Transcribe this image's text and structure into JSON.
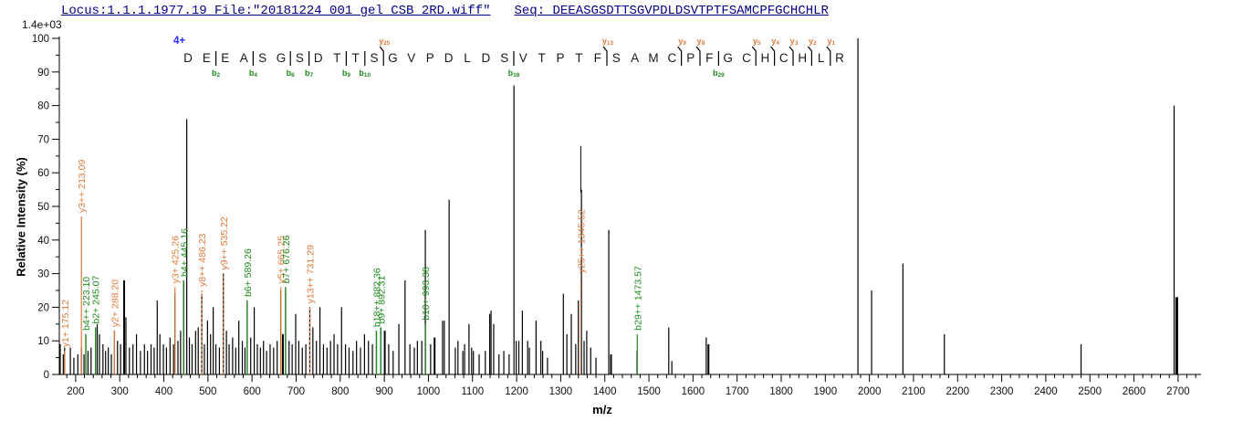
{
  "header": {
    "locus_file": "Locus:1.1.1.1977.19 File:\"20181224_001_gel_CSB_2RD.wiff\"",
    "seq": "Seq: DEEASGSDTTSGVPDLDSVTPTFSAMCPFGCHCHLR"
  },
  "colors": {
    "b_ion": "#1e8c1e",
    "y_ion": "#e07a3c",
    "peak": "#000000",
    "axis": "#000000",
    "header_text": "#00008b",
    "charge_label": "#2929ff",
    "sequence_text": "#1a1a1a"
  },
  "chart_data": {
    "type": "bar",
    "subtype": "ms2-spectrum",
    "xlabel": "m/z",
    "ylabel": "Relative  Intensity (%)",
    "y_scale_note": "1.4e+03",
    "xlim": [
      163,
      2752
    ],
    "ylim": [
      0,
      100
    ],
    "x_ticks": {
      "major_start": 200,
      "major_end": 2700,
      "major_step": 100,
      "minor_step": 20
    },
    "y_ticks": {
      "major_step": 10,
      "minor_step": 5
    },
    "grid": false,
    "peptide": {
      "sequence": "DEEASGSDTTSGVPDLDSVTPTFSAMCPFGCHCHLR",
      "precursor_charge": "4+",
      "b_ions": [
        {
          "num": 2,
          "after_pos": 2
        },
        {
          "num": 4,
          "after_pos": 4
        },
        {
          "num": 6,
          "after_pos": 6
        },
        {
          "num": 7,
          "after_pos": 7
        },
        {
          "num": 9,
          "after_pos": 9
        },
        {
          "num": 10,
          "after_pos": 10
        },
        {
          "num": 18,
          "after_pos": 18
        },
        {
          "num": 29,
          "after_pos": 29
        }
      ],
      "y_ions": [
        {
          "num": 25,
          "before_pos": 12
        },
        {
          "num": 13,
          "before_pos": 24
        },
        {
          "num": 9,
          "before_pos": 28
        },
        {
          "num": 8,
          "before_pos": 29
        },
        {
          "num": 5,
          "before_pos": 32
        },
        {
          "num": 4,
          "before_pos": 33
        },
        {
          "num": 3,
          "before_pos": 34
        },
        {
          "num": 2,
          "before_pos": 35
        },
        {
          "num": 1,
          "before_pos": 36
        }
      ]
    },
    "annotations": [
      {
        "mz": 175.12,
        "label": "y1+ 175.12",
        "ion": "y",
        "line_pct": 7
      },
      {
        "mz": 213.09,
        "label": "y3++ 213.09",
        "ion": "y",
        "line_pct": 47
      },
      {
        "mz": 223.1,
        "label": "b4++ 223.10",
        "ion": "b",
        "line_pct": 12
      },
      {
        "mz": 245.07,
        "label": "b2+ 245.07",
        "ion": "b",
        "line_pct": 14
      },
      {
        "mz": 288.2,
        "label": "y2+ 288.20",
        "ion": "y",
        "line_pct": 13
      },
      {
        "mz": 425.26,
        "label": "y3+ 425.26",
        "ion": "y",
        "line_pct": 26
      },
      {
        "mz": 445.16,
        "label": "b4+ 445.16",
        "ion": "b",
        "line_pct": 28
      },
      {
        "mz": 486.23,
        "label": "y8++ 486.23",
        "ion": "y",
        "line_pct": 25,
        "dashed": true
      },
      {
        "mz": 535.22,
        "label": "y9++ 535.22",
        "ion": "y",
        "line_pct": 30,
        "dashed": true
      },
      {
        "mz": 589.26,
        "label": "b6+ 589.26",
        "ion": "b",
        "line_pct": 22
      },
      {
        "mz": 665.25,
        "label": "y5+ 665.25",
        "ion": "y",
        "line_pct": 26
      },
      {
        "mz": 676.26,
        "label": "b7+ 676.26",
        "ion": "b",
        "line_pct": 26
      },
      {
        "mz": 731.29,
        "label": "y13++ 731.29",
        "ion": "y",
        "line_pct": 20,
        "dashed": true
      },
      {
        "mz": 882.36,
        "label": "b18++ 882.36",
        "ion": "b",
        "line_pct": 13
      },
      {
        "mz": 892.31,
        "label": "b9+ 892.31",
        "ion": "b",
        "line_pct": 14
      },
      {
        "mz": 993.38,
        "label": "b10+ 993.38",
        "ion": "b",
        "line_pct": 15
      },
      {
        "mz": 1345.52,
        "label": "y25++ 1345.52",
        "ion": "y",
        "line_pct": 29,
        "dashed": true,
        "leader_top_pct": 68
      },
      {
        "mz": 1473.57,
        "label": "b29++ 1473.57",
        "ion": "b",
        "line_pct": 12
      }
    ],
    "peaks": [
      [
        165,
        9
      ],
      [
        172,
        6
      ],
      [
        175,
        8
      ],
      [
        188,
        8
      ],
      [
        196,
        5
      ],
      [
        205,
        6
      ],
      [
        213,
        8
      ],
      [
        219,
        6
      ],
      [
        223,
        12
      ],
      [
        228,
        7
      ],
      [
        235,
        8
      ],
      [
        245,
        14
      ],
      [
        249,
        15
      ],
      [
        254,
        12
      ],
      [
        262,
        9
      ],
      [
        268,
        7
      ],
      [
        274,
        8
      ],
      [
        281,
        6
      ],
      [
        288,
        13
      ],
      [
        295,
        10
      ],
      [
        302,
        9
      ],
      [
        310,
        28,
        2
      ],
      [
        314,
        17
      ],
      [
        322,
        8
      ],
      [
        330,
        9
      ],
      [
        338,
        12
      ],
      [
        347,
        7
      ],
      [
        356,
        9
      ],
      [
        363,
        7
      ],
      [
        371,
        9
      ],
      [
        378,
        8
      ],
      [
        385,
        22
      ],
      [
        391,
        12
      ],
      [
        399,
        9
      ],
      [
        406,
        8
      ],
      [
        414,
        11
      ],
      [
        422,
        9
      ],
      [
        425,
        24
      ],
      [
        432,
        10
      ],
      [
        438,
        13
      ],
      [
        445,
        28
      ],
      [
        452,
        76
      ],
      [
        458,
        11
      ],
      [
        464,
        9
      ],
      [
        472,
        13
      ],
      [
        478,
        14
      ],
      [
        486,
        24
      ],
      [
        492,
        9
      ],
      [
        499,
        16
      ],
      [
        506,
        12
      ],
      [
        512,
        20
      ],
      [
        518,
        9
      ],
      [
        526,
        8
      ],
      [
        535,
        30
      ],
      [
        542,
        13
      ],
      [
        548,
        9
      ],
      [
        556,
        11
      ],
      [
        563,
        8
      ],
      [
        570,
        16
      ],
      [
        578,
        10
      ],
      [
        584,
        8
      ],
      [
        589,
        22
      ],
      [
        597,
        11
      ],
      [
        605,
        20
      ],
      [
        612,
        9
      ],
      [
        619,
        8
      ],
      [
        626,
        10
      ],
      [
        633,
        7
      ],
      [
        641,
        9
      ],
      [
        649,
        8
      ],
      [
        657,
        10
      ],
      [
        665,
        25
      ],
      [
        670,
        12,
        2
      ],
      [
        676,
        26
      ],
      [
        684,
        10
      ],
      [
        691,
        9
      ],
      [
        699,
        18
      ],
      [
        706,
        10
      ],
      [
        714,
        8
      ],
      [
        722,
        9
      ],
      [
        731,
        20
      ],
      [
        738,
        14
      ],
      [
        746,
        10
      ],
      [
        754,
        20
      ],
      [
        762,
        9
      ],
      [
        770,
        8
      ],
      [
        778,
        10
      ],
      [
        786,
        12
      ],
      [
        794,
        9
      ],
      [
        803,
        20
      ],
      [
        812,
        9
      ],
      [
        820,
        8
      ],
      [
        829,
        7
      ],
      [
        837,
        10
      ],
      [
        846,
        8
      ],
      [
        855,
        12
      ],
      [
        864,
        10
      ],
      [
        873,
        9
      ],
      [
        882,
        13
      ],
      [
        892,
        14
      ],
      [
        901,
        13,
        2
      ],
      [
        910,
        9
      ],
      [
        920,
        7
      ],
      [
        933,
        15
      ],
      [
        947,
        28
      ],
      [
        958,
        9
      ],
      [
        968,
        8
      ],
      [
        975,
        10
      ],
      [
        985,
        10
      ],
      [
        993,
        43
      ],
      [
        1005,
        9
      ],
      [
        1014,
        11,
        2
      ],
      [
        1032,
        16
      ],
      [
        1036,
        16
      ],
      [
        1047,
        52
      ],
      [
        1061,
        8
      ],
      [
        1067,
        10
      ],
      [
        1078,
        7
      ],
      [
        1082,
        9
      ],
      [
        1092,
        15
      ],
      [
        1098,
        8
      ],
      [
        1102,
        7
      ],
      [
        1115,
        6
      ],
      [
        1129,
        7
      ],
      [
        1139,
        18
      ],
      [
        1142,
        19
      ],
      [
        1148,
        15
      ],
      [
        1160,
        6
      ],
      [
        1171,
        7
      ],
      [
        1183,
        6
      ],
      [
        1194,
        86
      ],
      [
        1199,
        10
      ],
      [
        1205,
        10
      ],
      [
        1213,
        19
      ],
      [
        1225,
        10
      ],
      [
        1229,
        8
      ],
      [
        1244,
        16
      ],
      [
        1255,
        10
      ],
      [
        1259,
        7
      ],
      [
        1270,
        5
      ],
      [
        1306,
        24
      ],
      [
        1314,
        12
      ],
      [
        1324,
        18
      ],
      [
        1334,
        9
      ],
      [
        1340,
        22
      ],
      [
        1347,
        55
      ],
      [
        1353,
        10
      ],
      [
        1359,
        13
      ],
      [
        1368,
        8
      ],
      [
        1380,
        5
      ],
      [
        1409,
        43
      ],
      [
        1414,
        6,
        2
      ],
      [
        1473,
        7
      ],
      [
        1545,
        14
      ],
      [
        1552,
        4
      ],
      [
        1630,
        11
      ],
      [
        1635,
        9,
        2
      ],
      [
        1974,
        100
      ],
      [
        2005,
        25
      ],
      [
        2076,
        33
      ],
      [
        2170,
        12
      ],
      [
        2480,
        9
      ],
      [
        2691,
        80
      ],
      [
        2697,
        23,
        3
      ]
    ]
  }
}
